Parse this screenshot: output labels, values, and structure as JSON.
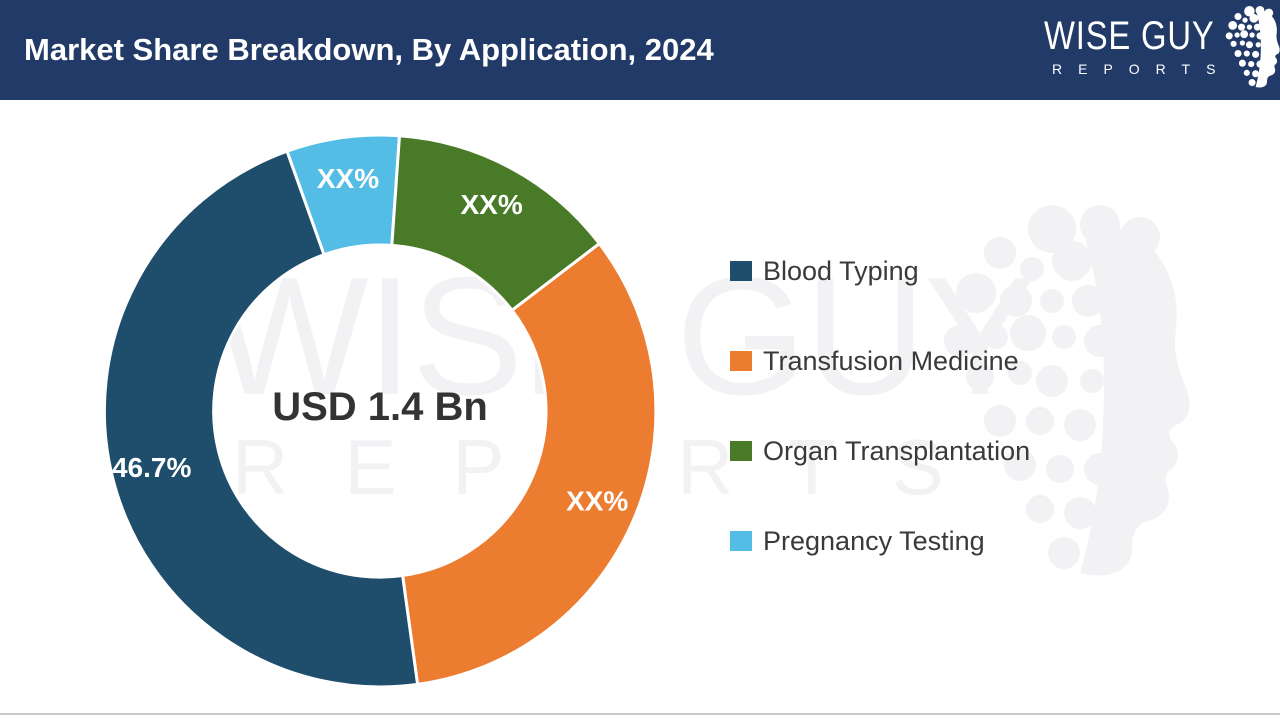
{
  "header": {
    "title": "Market Share Breakdown, By Application, 2024"
  },
  "logo": {
    "line1": "WISE GUY",
    "line2": "REPORTS"
  },
  "watermark": {
    "line1": "WISE GUY",
    "line2": "REPORTS"
  },
  "chart_data": {
    "type": "pie",
    "subtype": "donut",
    "title": "Market Share Breakdown, By Application, 2024",
    "center_label": "USD 1.4 Bn",
    "legend_position": "right",
    "start_angle_clockwise_from_top_deg": 340.3,
    "draw_direction": "clockwise, segments drawn in reverse legend order",
    "segments": [
      {
        "name": "Blood Typing",
        "display_label": "46.7%",
        "value_pct": 46.7,
        "color": "#1f4e6d"
      },
      {
        "name": "Transfusion Medicine",
        "display_label": "XX%",
        "value_pct": 33.2,
        "color": "#ec7c30"
      },
      {
        "name": "Organ Transplantation",
        "display_label": "XX%",
        "value_pct": 13.5,
        "color": "#487a28"
      },
      {
        "name": "Pregnancy Testing",
        "display_label": "XX%",
        "value_pct": 6.6,
        "color": "#54bde6"
      }
    ]
  },
  "colors": {
    "header_bg": "#213a67",
    "text_dark": "#333333",
    "watermark": "#f2f2f5",
    "bottom_line": "#c9c9c9"
  }
}
